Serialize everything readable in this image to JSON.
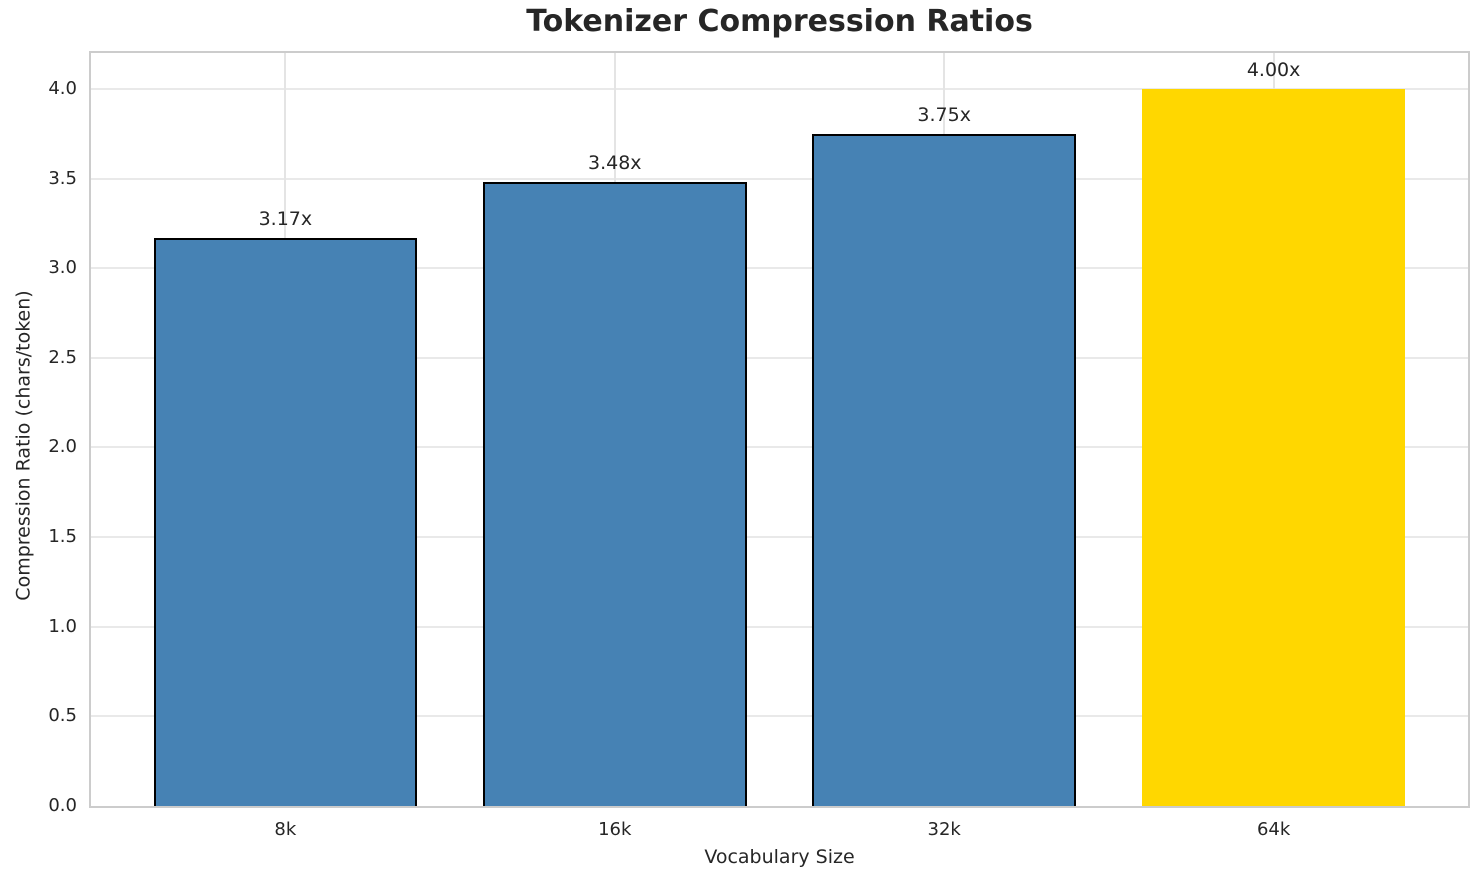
{
  "chart_data": {
    "type": "bar",
    "title": "Tokenizer Compression Ratios",
    "xlabel": "Vocabulary Size",
    "ylabel": "Compression Ratio (chars/token)",
    "categories": [
      "8k",
      "16k",
      "32k",
      "64k"
    ],
    "values": [
      3.17,
      3.48,
      3.75,
      4.0
    ],
    "bar_labels": [
      "3.17x",
      "3.48x",
      "3.75x",
      "4.00x"
    ],
    "bar_colors": [
      "#4682B4",
      "#4682B4",
      "#4682B4",
      "#FFD700"
    ],
    "bar_edge_colors": [
      "#000000",
      "#000000",
      "#000000",
      "none"
    ],
    "bar_width": 0.8,
    "yticks": [
      "0.0",
      "0.5",
      "1.0",
      "1.5",
      "2.0",
      "2.5",
      "3.0",
      "3.5",
      "4.0"
    ],
    "ylim": [
      0,
      4.2
    ],
    "xlim": [
      -0.59,
      3.59
    ],
    "grid": true,
    "legend": null,
    "style": {
      "grid_color": "#e8e8e8",
      "spine_color": "#cccccc",
      "text_color": "#262626",
      "highlight_color": "#FFD700",
      "base_color": "#4682B4",
      "background": "#ffffff"
    }
  }
}
